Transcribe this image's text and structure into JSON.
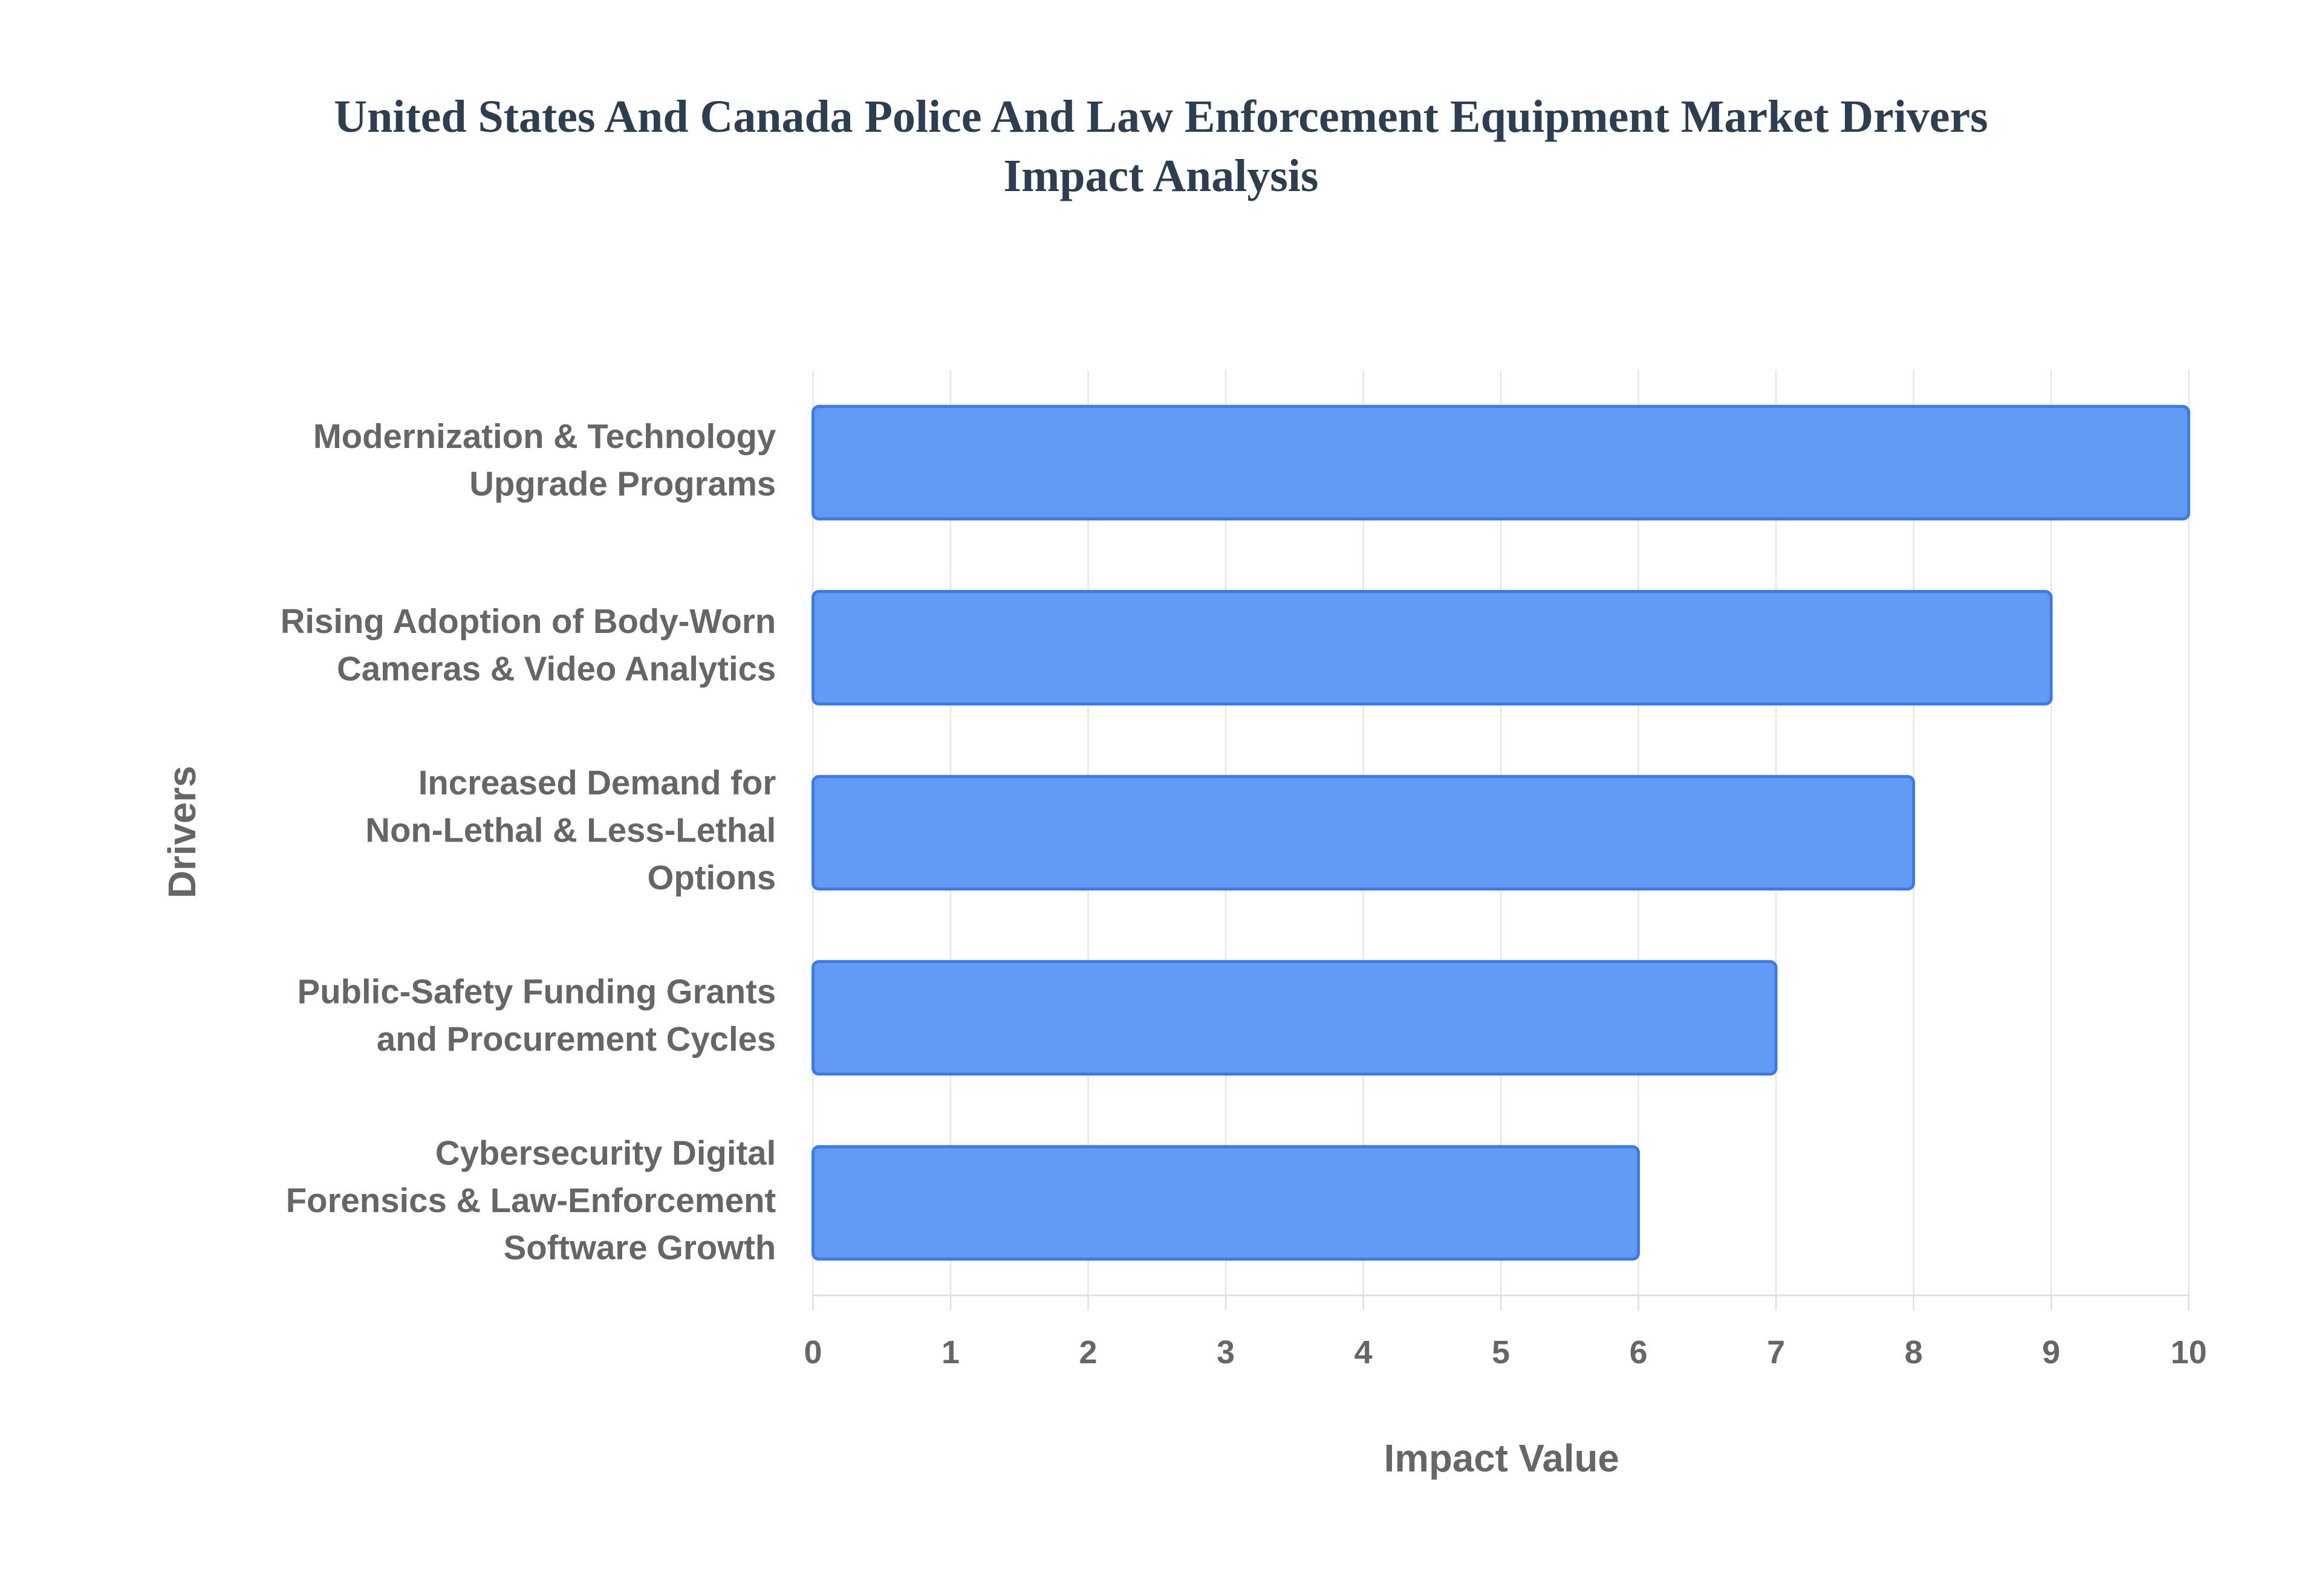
{
  "chart_data": {
    "type": "bar",
    "orientation": "horizontal",
    "title": "United States And Canada Police And Law Enforcement Equipment Market Drivers Impact Analysis",
    "x_label": "Impact Value",
    "y_label": "Drivers",
    "categories": [
      "Modernization & Technology Upgrade Programs",
      "Rising Adoption of Body-Worn Cameras & Video Analytics",
      "Increased Demand for Non-Lethal & Less-Lethal Options",
      "Public-Safety Funding Grants and Procurement Cycles",
      "Cybersecurity Digital Forensics & Law-Enforcement Software Growth"
    ],
    "values": [
      10,
      9,
      8,
      7,
      6
    ],
    "color": "#6199f5",
    "xlim": [
      0,
      10
    ],
    "xticks": [
      0,
      1,
      2,
      3,
      4,
      5,
      6,
      7,
      8,
      9,
      10
    ],
    "grid": true
  }
}
